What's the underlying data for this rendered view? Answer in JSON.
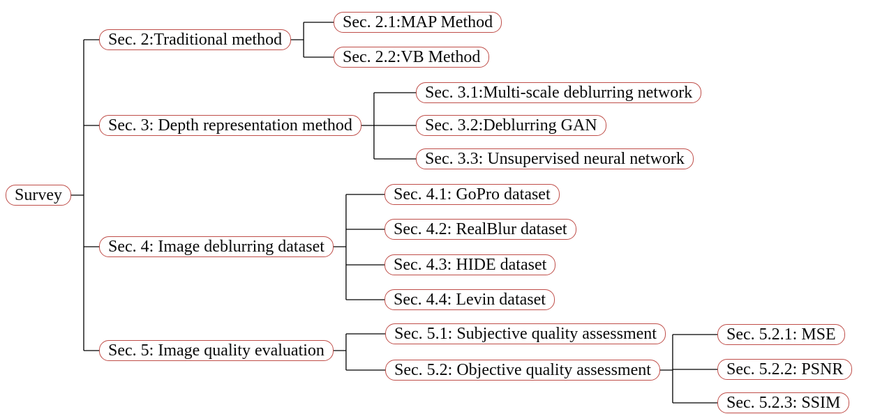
{
  "diagram": {
    "type": "tree",
    "description": "Survey paper section structure diagram"
  },
  "colors": {
    "node_border": "#bf4e49",
    "connector": "#000000",
    "text": "#0a0a0a",
    "background": "#ffffff"
  },
  "nodes": {
    "survey": "Survey",
    "sec2": "Sec. 2:Traditional method",
    "sec2_1": "Sec. 2.1:MAP Method",
    "sec2_2": "Sec. 2.2:VB Method",
    "sec3": "Sec. 3: Depth representation method",
    "sec3_1": "Sec. 3.1:Multi-scale deblurring network",
    "sec3_2": "Sec. 3.2:Deblurring GAN",
    "sec3_3": "Sec. 3.3: Unsupervised neural network",
    "sec4": "Sec. 4: Image deblurring dataset",
    "sec4_1": "Sec. 4.1: GoPro dataset",
    "sec4_2": "Sec. 4.2: RealBlur dataset",
    "sec4_3": "Sec. 4.3: HIDE dataset",
    "sec4_4": "Sec. 4.4: Levin dataset",
    "sec5": "Sec. 5: Image quality evaluation",
    "sec5_1": "Sec. 5.1: Subjective quality assessment",
    "sec5_2": "Sec. 5.2: Objective quality assessment",
    "sec5_2_1": "Sec. 5.2.1: MSE",
    "sec5_2_2": "Sec. 5.2.2: PSNR",
    "sec5_2_3": "Sec. 5.2.3: SSIM"
  },
  "hierarchy": {
    "survey": [
      "sec2",
      "sec3",
      "sec4",
      "sec5"
    ],
    "sec2": [
      "sec2_1",
      "sec2_2"
    ],
    "sec3": [
      "sec3_1",
      "sec3_2",
      "sec3_3"
    ],
    "sec4": [
      "sec4_1",
      "sec4_2",
      "sec4_3",
      "sec4_4"
    ],
    "sec5": [
      "sec5_1",
      "sec5_2"
    ],
    "sec5_2": [
      "sec5_2_1",
      "sec5_2_2",
      "sec5_2_3"
    ]
  }
}
